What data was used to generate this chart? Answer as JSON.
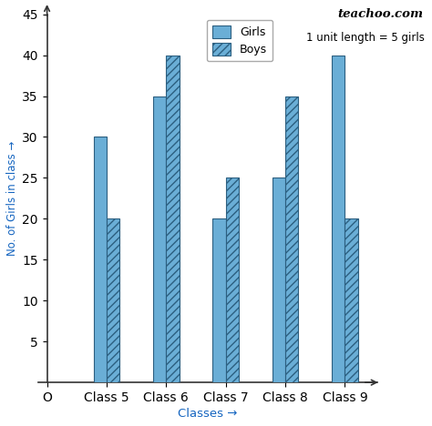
{
  "categories": [
    "Class 5",
    "Class 6",
    "Class 7",
    "Class 8",
    "Class 9"
  ],
  "girls": [
    30,
    35,
    20,
    25,
    40
  ],
  "boys": [
    20,
    40,
    25,
    35,
    20
  ],
  "bar_color_girls": "#6aaed6",
  "bar_color_boys": "#6aaed6",
  "bar_edgecolor": "#2c5f80",
  "title": "teachoo.com",
  "xlabel": "Classes →",
  "ylabel": "No. of Girls in class →",
  "annotation": "1 unit length = 5 girls",
  "ylim": [
    0,
    45
  ],
  "yticks": [
    5,
    10,
    15,
    20,
    25,
    30,
    35,
    40,
    45
  ],
  "legend_girls": "Girls",
  "legend_boys": "Boys",
  "xlabel_color": "#1565c0",
  "ylabel_color": "#1565c0",
  "title_color": "#000000",
  "background_color": "#ffffff"
}
